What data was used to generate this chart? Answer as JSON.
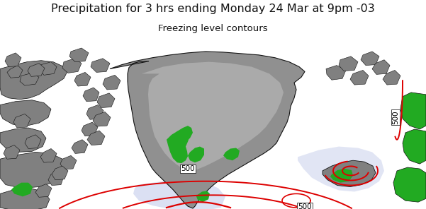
{
  "title": "Precipitation for 3 hrs ending Monday 24 Mar at 9pm -03",
  "subtitle": "Freezing level contours",
  "title_fontsize": 11.5,
  "subtitle_fontsize": 9.5,
  "title_color": "#111111",
  "fig_bg": "#ffffff",
  "ocean_color": "#d8dcf0",
  "greenland_color": "#909090",
  "greenland_dark": "#787878",
  "land_gray": "#808080",
  "land_dark": "#606060",
  "border_color": "#111111",
  "precip_green": "#22aa22",
  "precip_red": "#dd0000",
  "light_blue": "#cdd4ee",
  "contour_label": "500",
  "header_line_color": "#aaaaaa",
  "figsize": [
    6.01,
    2.96
  ],
  "dpi": 100,
  "map_xlim": [
    0,
    601
  ],
  "map_ylim": [
    0,
    250
  ]
}
